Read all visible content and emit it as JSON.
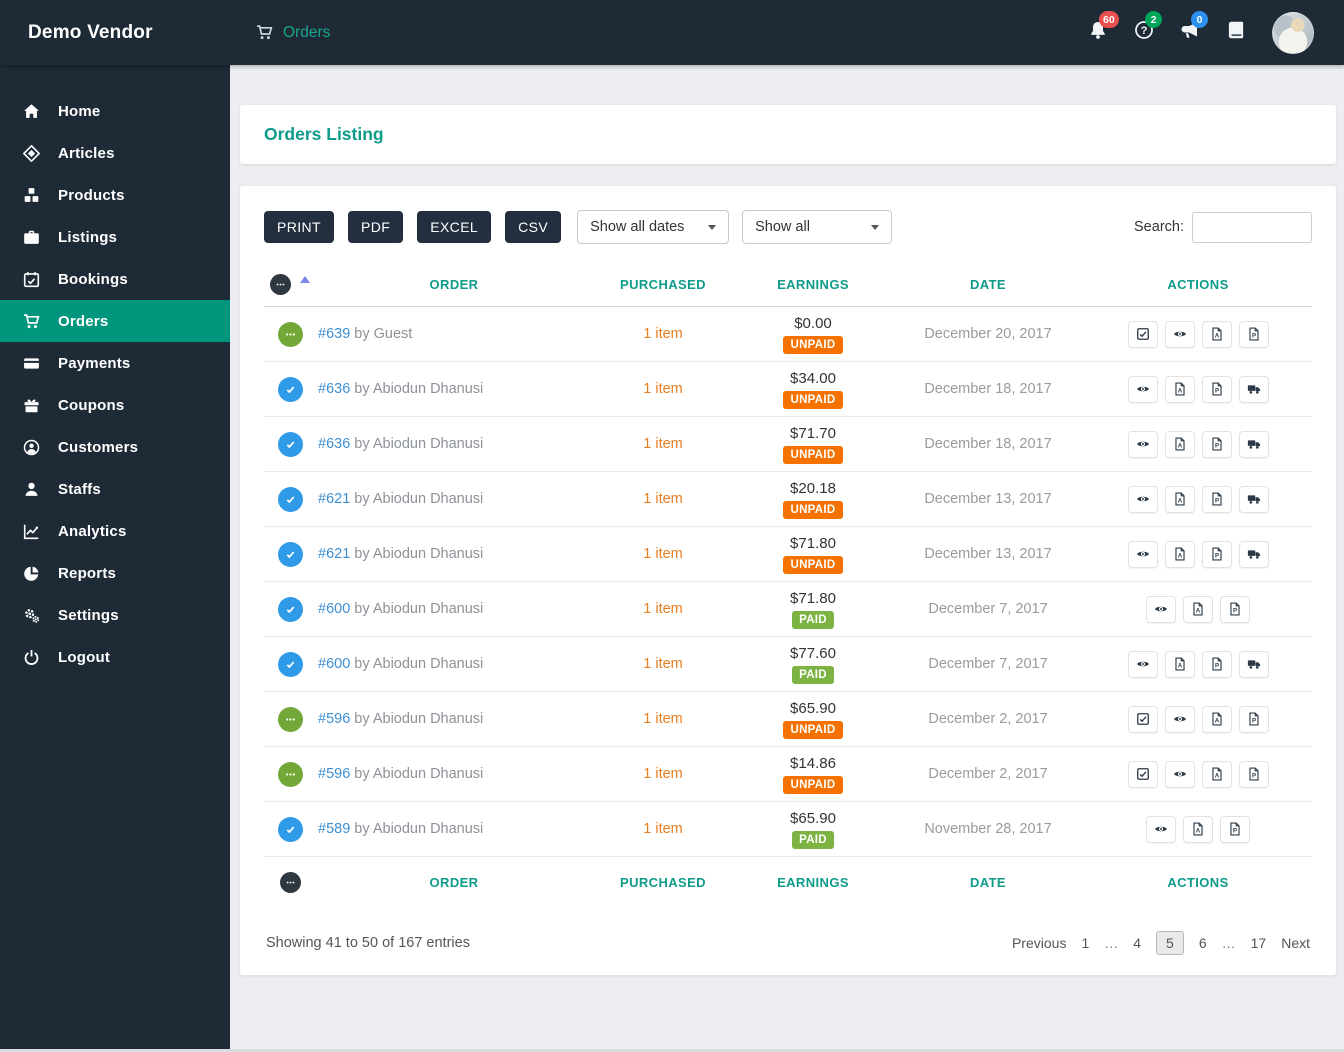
{
  "app": {
    "brand": "Demo Vendor"
  },
  "topbar": {
    "breadcrumb": "Orders",
    "icons": [
      {
        "icon": "bell",
        "badge": "60",
        "badge_color": "#e8504f"
      },
      {
        "icon": "question",
        "badge": "2",
        "badge_color": "#00a65a"
      },
      {
        "icon": "megaphone",
        "badge": "0",
        "badge_color": "#2b90ef"
      },
      {
        "icon": "book"
      }
    ]
  },
  "sidebar": {
    "items": [
      {
        "label": "Home",
        "icon": "home",
        "active": false
      },
      {
        "label": "Articles",
        "icon": "articles",
        "active": false
      },
      {
        "label": "Products",
        "icon": "products",
        "active": false
      },
      {
        "label": "Listings",
        "icon": "listings",
        "active": false
      },
      {
        "label": "Bookings",
        "icon": "bookings",
        "active": false
      },
      {
        "label": "Orders",
        "icon": "cart",
        "active": true
      },
      {
        "label": "Payments",
        "icon": "payments",
        "active": false
      },
      {
        "label": "Coupons",
        "icon": "coupons",
        "active": false
      },
      {
        "label": "Customers",
        "icon": "customers",
        "active": false
      },
      {
        "label": "Staffs",
        "icon": "staffs",
        "active": false
      },
      {
        "label": "Analytics",
        "icon": "analytics",
        "active": false
      },
      {
        "label": "Reports",
        "icon": "reports",
        "active": false
      },
      {
        "label": "Settings",
        "icon": "settings",
        "active": false
      },
      {
        "label": "Logout",
        "icon": "logout",
        "active": false
      }
    ]
  },
  "page": {
    "title": "Orders Listing"
  },
  "toolbar": {
    "export_buttons": [
      "PRINT",
      "PDF",
      "EXCEL",
      "CSV"
    ],
    "date_filter": "Show all dates",
    "status_filter": "Show all",
    "search_label": "Search:"
  },
  "table": {
    "headers": [
      "ORDER",
      "PURCHASED",
      "EARNINGS",
      "DATE",
      "ACTIONS"
    ],
    "sort_indicator": "ascending",
    "rows": [
      {
        "status": "processing",
        "order_id": "#639",
        "customer": "by Guest",
        "purchased": "1 item",
        "amount": "$0.00",
        "payment": "UNPAID",
        "date": "December 20, 2017",
        "actions": [
          "check-square",
          "eye",
          "file-pdf",
          "file-p"
        ]
      },
      {
        "status": "completed",
        "order_id": "#636",
        "customer": "by Abiodun Dhanusi",
        "purchased": "1 item",
        "amount": "$34.00",
        "payment": "UNPAID",
        "date": "December 18, 2017",
        "actions": [
          "eye",
          "file-pdf",
          "file-p",
          "truck"
        ]
      },
      {
        "status": "completed",
        "order_id": "#636",
        "customer": "by Abiodun Dhanusi",
        "purchased": "1 item",
        "amount": "$71.70",
        "payment": "UNPAID",
        "date": "December 18, 2017",
        "actions": [
          "eye",
          "file-pdf",
          "file-p",
          "truck"
        ]
      },
      {
        "status": "completed",
        "order_id": "#621",
        "customer": "by Abiodun Dhanusi",
        "purchased": "1 item",
        "amount": "$20.18",
        "payment": "UNPAID",
        "date": "December 13, 2017",
        "actions": [
          "eye",
          "file-pdf",
          "file-p",
          "truck"
        ]
      },
      {
        "status": "completed",
        "order_id": "#621",
        "customer": "by Abiodun Dhanusi",
        "purchased": "1 item",
        "amount": "$71.80",
        "payment": "UNPAID",
        "date": "December 13, 2017",
        "actions": [
          "eye",
          "file-pdf",
          "file-p",
          "truck"
        ]
      },
      {
        "status": "completed",
        "order_id": "#600",
        "customer": "by Abiodun Dhanusi",
        "purchased": "1 item",
        "amount": "$71.80",
        "payment": "PAID",
        "date": "December 7, 2017",
        "actions": [
          "eye",
          "file-pdf",
          "file-p"
        ]
      },
      {
        "status": "completed",
        "order_id": "#600",
        "customer": "by Abiodun Dhanusi",
        "purchased": "1 item",
        "amount": "$77.60",
        "payment": "PAID",
        "date": "December 7, 2017",
        "actions": [
          "eye",
          "file-pdf",
          "file-p",
          "truck"
        ]
      },
      {
        "status": "processing",
        "order_id": "#596",
        "customer": "by Abiodun Dhanusi",
        "purchased": "1 item",
        "amount": "$65.90",
        "payment": "UNPAID",
        "date": "December 2, 2017",
        "actions": [
          "check-square",
          "eye",
          "file-pdf",
          "file-p"
        ]
      },
      {
        "status": "processing",
        "order_id": "#596",
        "customer": "by Abiodun Dhanusi",
        "purchased": "1 item",
        "amount": "$14.86",
        "payment": "UNPAID",
        "date": "December 2, 2017",
        "actions": [
          "check-square",
          "eye",
          "file-pdf",
          "file-p"
        ]
      },
      {
        "status": "completed",
        "order_id": "#589",
        "customer": "by Abiodun Dhanusi",
        "purchased": "1 item",
        "amount": "$65.90",
        "payment": "PAID",
        "date": "November 28, 2017",
        "actions": [
          "eye",
          "file-pdf",
          "file-p"
        ]
      }
    ]
  },
  "footer": {
    "showing": "Showing 41 to 50 of 167 entries",
    "pagination": [
      {
        "label": "Previous",
        "type": "nav"
      },
      {
        "label": "1",
        "type": "page"
      },
      {
        "label": "…",
        "type": "ellipsis"
      },
      {
        "label": "4",
        "type": "page"
      },
      {
        "label": "5",
        "type": "page",
        "active": true
      },
      {
        "label": "6",
        "type": "page"
      },
      {
        "label": "…",
        "type": "ellipsis"
      },
      {
        "label": "17",
        "type": "page"
      },
      {
        "label": "Next",
        "type": "nav"
      }
    ]
  },
  "colors": {
    "navy": "#1e2a36",
    "accent": "#0f9b8a",
    "link_blue": "#3d8fd3",
    "item_orange": "#e67e22",
    "unpaid_badge": "#f57200",
    "paid_badge": "#7cb342",
    "status_green": "#73a839",
    "status_blue": "#2f9be8",
    "badge_red": "#e8504f",
    "badge_green": "#00a65a",
    "badge_blue": "#2b90ef"
  }
}
